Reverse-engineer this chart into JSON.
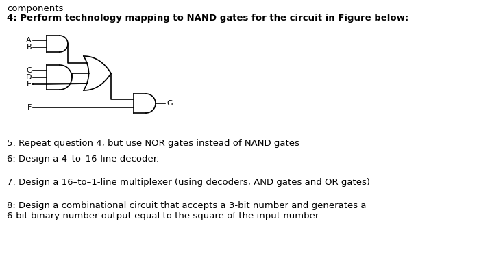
{
  "top_text": "components",
  "line4": "4: Perform technology mapping to NAND gates for the circuit in Figure below:",
  "line5": "5: Repeat question 4, but use NOR gates instead of NAND gates",
  "line6": "6: Design a 4–to–16-line decoder.",
  "line7": "7: Design a 16–to–1-line multiplexer (using decoders, AND gates and OR gates)",
  "line8": "8: Design a combinational circuit that accepts a 3-bit number and generates a\n6-bit binary number output equal to the square of the input number.",
  "bg_color": "#ffffff",
  "text_color": "#000000",
  "font_size_main": 9.5,
  "gate_lw": 1.2,
  "circuit_scale": 1.0
}
